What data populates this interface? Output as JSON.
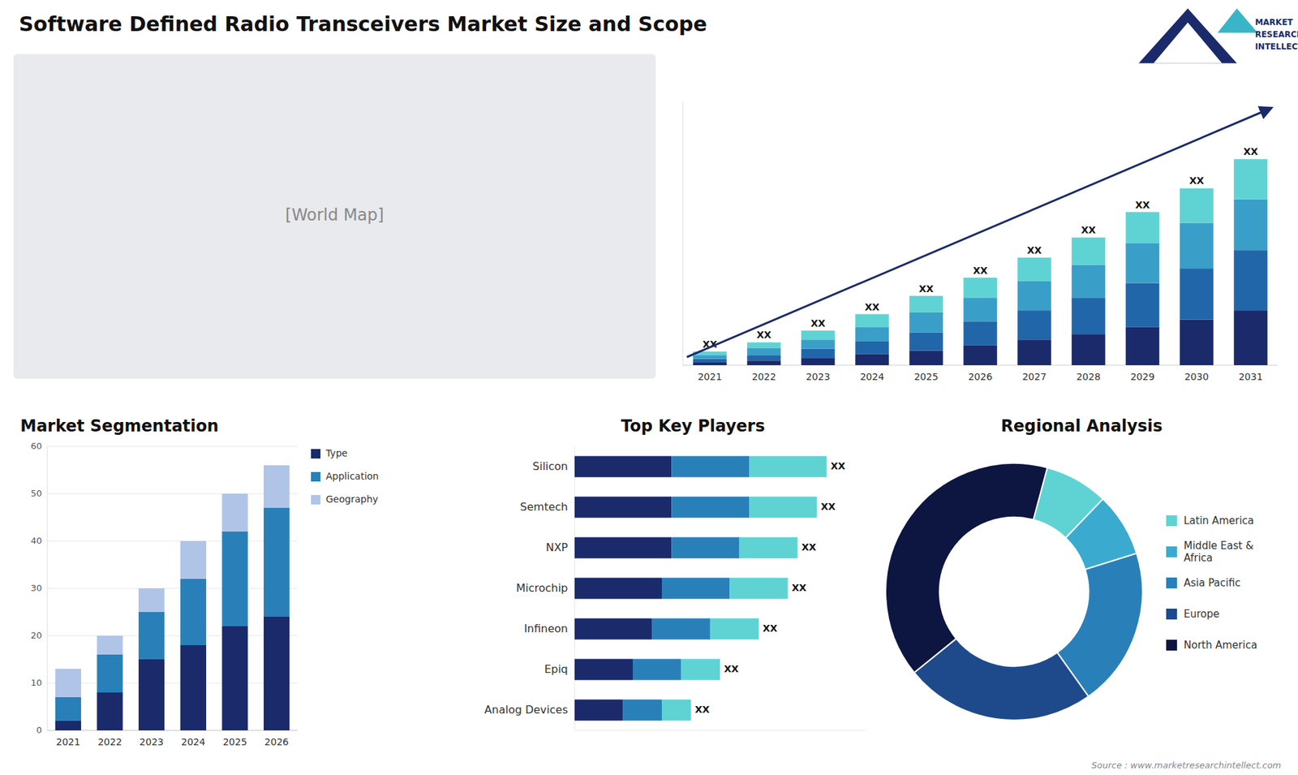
{
  "title": "Software Defined Radio Transceivers Market Size and Scope",
  "annotations": [
    "[World Map]",
    "MARKET",
    "RESEARCH",
    "INTELLECT",
    "Source : www.marketresearchintellect.com"
  ],
  "chart_data": [
    {
      "type": "bar",
      "stacked": true,
      "categories": [
        "2021",
        "2022",
        "2023",
        "2024",
        "2025",
        "2026",
        "2027",
        "2028",
        "2029",
        "2030",
        "2031"
      ],
      "series": [
        {
          "color": "#1b2a6b",
          "values": [
            1.5,
            2.5,
            4,
            6,
            8,
            11,
            14,
            17,
            21,
            25,
            30
          ]
        },
        {
          "color": "#2166a8",
          "values": [
            2,
            3,
            5,
            7,
            10,
            13,
            16,
            20,
            24,
            28,
            33
          ]
        },
        {
          "color": "#3a9fc8",
          "values": [
            2,
            4,
            5,
            8,
            11,
            13,
            16,
            18,
            22,
            25,
            28
          ]
        },
        {
          "color": "#5fd3d3",
          "values": [
            2,
            3,
            5,
            7,
            9,
            11,
            13,
            15,
            17,
            19,
            22
          ]
        }
      ],
      "annotations": [
        "XX",
        "XX",
        "XX",
        "XX",
        "XX",
        "XX",
        "XX",
        "XX",
        "XX",
        "XX",
        "XX"
      ],
      "ylim": [
        0,
        144.64
      ],
      "grid": false,
      "tick_labels": "x"
    },
    {
      "type": "bar",
      "stacked": true,
      "title": "Market Segmentation",
      "categories": [
        "2021",
        "2022",
        "2023",
        "2024",
        "2025",
        "2026"
      ],
      "series": [
        {
          "name": "Type",
          "color": "#1b2a6b",
          "values": [
            2,
            8,
            15,
            18,
            22,
            24
          ]
        },
        {
          "name": "Application",
          "color": "#2980b9",
          "values": [
            5,
            8,
            10,
            14,
            20,
            23
          ]
        },
        {
          "name": "Geography",
          "color": "#b0c4e8",
          "values": [
            6,
            4,
            5,
            8,
            8,
            9
          ]
        }
      ],
      "ylim": [
        0,
        60
      ],
      "yticks": [
        0,
        10,
        20,
        30,
        40,
        50,
        60
      ],
      "grid": true,
      "legend": "right"
    },
    {
      "type": "bar",
      "stacked": true,
      "orientation": "horizontal",
      "title": "Top Key Players",
      "categories": [
        "Silicon",
        "Semtech",
        "NXP",
        "Microchip",
        "Infineon",
        "Epiq",
        "Analog Devices"
      ],
      "series": [
        {
          "color": "#1b2a6b",
          "values": [
            5,
            5,
            5,
            4.5,
            4,
            3,
            2.5
          ]
        },
        {
          "color": "#2980b9",
          "values": [
            4,
            4,
            3.5,
            3.5,
            3,
            2.5,
            2
          ]
        },
        {
          "color": "#5fd3d3",
          "values": [
            4,
            3.5,
            3,
            3,
            2.5,
            2,
            1.5
          ]
        }
      ],
      "annotations": [
        "XX",
        "XX",
        "XX",
        "XX",
        "XX",
        "XX",
        "XX"
      ],
      "xlim": [
        0,
        15
      ],
      "grid": false,
      "tick_labels": "y"
    },
    {
      "type": "donut",
      "title": "Regional Analysis",
      "categories": [
        "Latin America",
        "Middle East &\nAfrica",
        "Asia Pacific",
        "Europe",
        "North America"
      ],
      "values": [
        8,
        8,
        20,
        24,
        40
      ],
      "colors": [
        "#5fd3d3",
        "#3aabcf",
        "#2980b9",
        "#1e4a8c",
        "#0d1640"
      ],
      "legend": "right"
    }
  ]
}
